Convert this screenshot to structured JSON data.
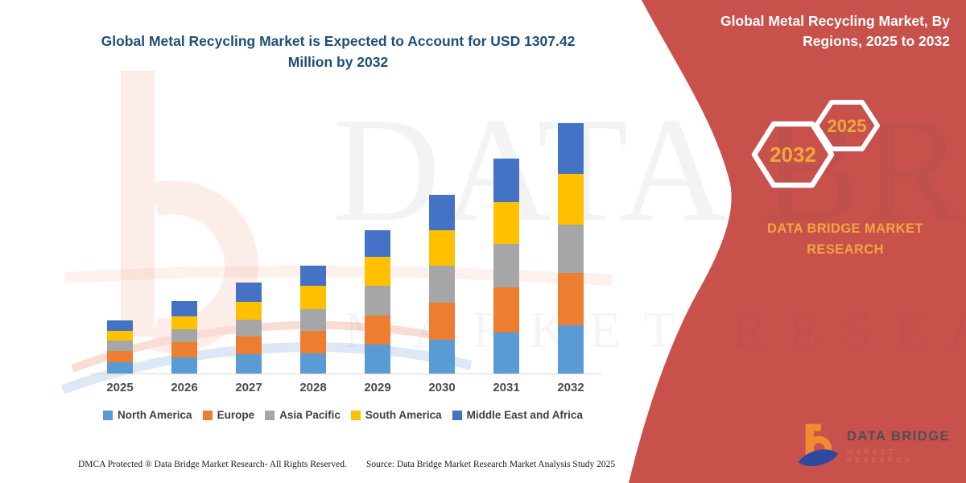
{
  "header": {
    "chart_title": "Global Metal Recycling Market is Expected to Account for USD 1307.42 Million by 2032"
  },
  "panel": {
    "title": "Global Metal Recycling Market, By Regions, 2025 to 2032",
    "hexagon_back_year": "2032",
    "hexagon_front_year": "2025",
    "brand_text": "DATA BRIDGE MARKET RESEARCH"
  },
  "watermark": {
    "line1": "DATA BRIDGE",
    "line2": "MARKET RESEARCH"
  },
  "logo": {
    "name": "DATA BRIDGE",
    "subtitle": "MARKET RESEARCH"
  },
  "footer": {
    "dmca": "DMCA Protected ® Data Bridge Market Research-  All Rights Reserved.",
    "source": "Source: Data Bridge Market Research  Market Analysis Study 2025"
  },
  "colors": {
    "panel_red": "#C9514B",
    "title_blue": "#1F4E79",
    "gold": "#EDA73C",
    "axis_line": "#D9D9D9",
    "axis_label": "#4A4A4A"
  },
  "chart_data": {
    "type": "bar",
    "stacked": true,
    "title": "Global Metal Recycling Market is Expected to Account for USD 1307.42 Million by 2032",
    "unit": "USD Million (values estimated from bar heights; 2032 total = 1307.42)",
    "value_axis_hidden": true,
    "grid": false,
    "legend_position": "bottom",
    "categories": [
      "2025",
      "2026",
      "2027",
      "2028",
      "2029",
      "2030",
      "2031",
      "2032"
    ],
    "series": [
      {
        "name": "North America",
        "color": "#5B9BD5",
        "values": [
          59,
          84,
          101,
          105,
          151,
          177,
          214,
          252
        ]
      },
      {
        "name": "Europe",
        "color": "#ED7D31",
        "values": [
          58,
          80,
          92,
          118,
          151,
          193,
          235,
          273
        ]
      },
      {
        "name": "Asia Pacific",
        "color": "#A6A6A6",
        "values": [
          55,
          67,
          88,
          113,
          156,
          193,
          227,
          252
        ]
      },
      {
        "name": "South America",
        "color": "#FFC000",
        "values": [
          52,
          67,
          92,
          122,
          151,
          185,
          219,
          265
        ]
      },
      {
        "name": "Middle East and Africa",
        "color": "#4472C4",
        "values": [
          53,
          80,
          101,
          105,
          139,
          185,
          227,
          265
        ]
      }
    ],
    "totals": [
      277,
      378,
      474,
      563,
      748,
      933,
      1122,
      1307.42
    ]
  }
}
